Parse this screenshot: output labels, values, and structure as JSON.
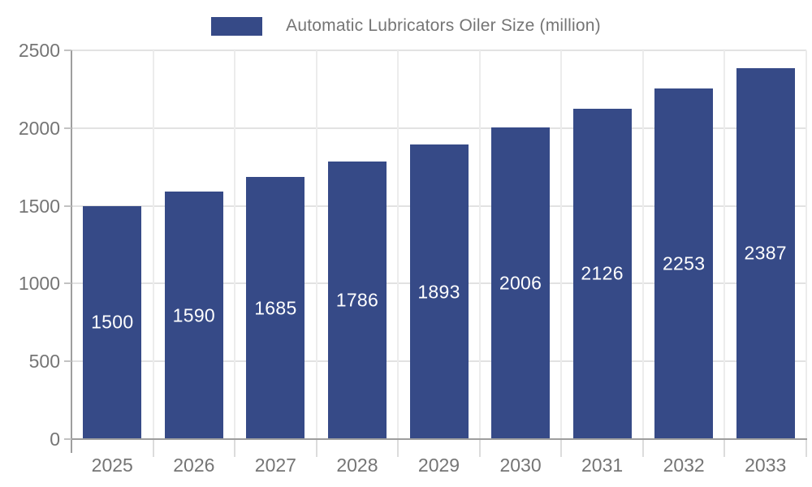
{
  "legend": {
    "label": "Automatic Lubricators Oiler Size (million)"
  },
  "chart_data": {
    "type": "bar",
    "title": "Automatic Lubricators Oiler Size (million)",
    "categories": [
      "2025",
      "2026",
      "2027",
      "2028",
      "2029",
      "2030",
      "2031",
      "2032",
      "2033"
    ],
    "values": [
      1500,
      1590,
      1685,
      1786,
      1893,
      2006,
      2126,
      2253,
      2387
    ],
    "xlabel": "",
    "ylabel": "",
    "ylim": [
      0,
      2500
    ],
    "yticks": [
      0,
      500,
      1000,
      1500,
      2000,
      2500
    ],
    "grid": true,
    "legend_position": "top-center",
    "bar_color": "#364a87",
    "bar_label_color": "#ffffff",
    "axis_text_color": "#757575"
  }
}
